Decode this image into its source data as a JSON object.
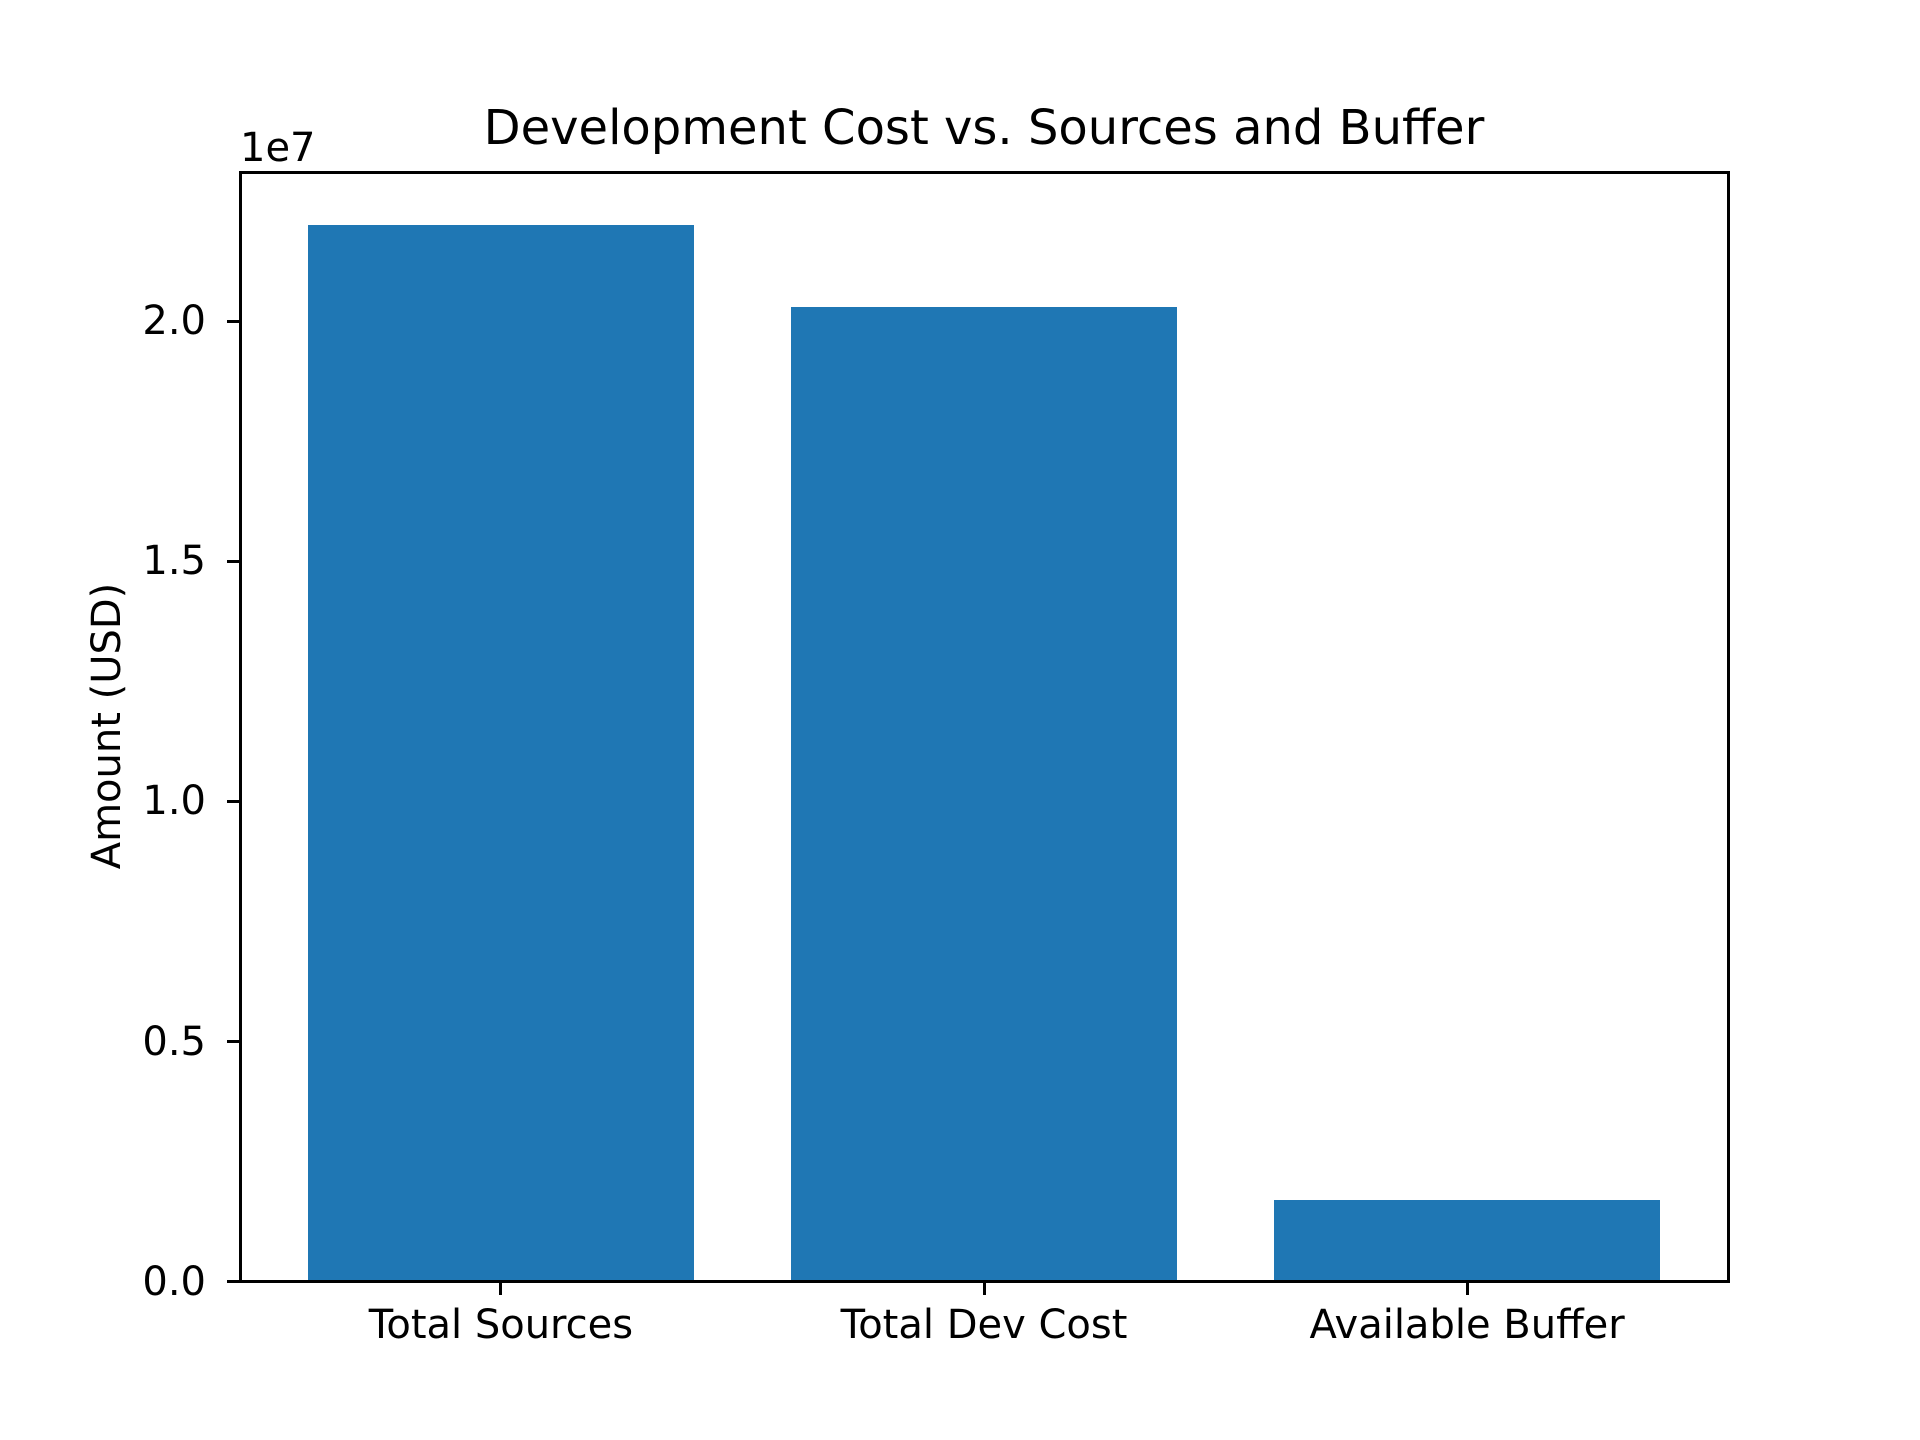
{
  "figure": {
    "background": "#ffffff",
    "text_color": "#000000"
  },
  "chart_data": {
    "type": "bar",
    "title": "Development Cost vs. Sources and Buffer",
    "ylabel": "Amount (USD)",
    "xlabel": "",
    "offset_text": "1e7",
    "categories": [
      "Total Sources",
      "Total Dev Cost",
      "Available Buffer"
    ],
    "values": [
      22000000,
      20300000,
      1700000
    ],
    "bar_color": "#1f77b4",
    "bar_width_fraction": 0.8,
    "xlim": [
      -0.54,
      2.54
    ],
    "ylim": [
      0,
      23100000
    ],
    "yticks": {
      "values": [
        0,
        5000000,
        10000000,
        15000000,
        20000000
      ],
      "labels": [
        "0.0",
        "0.5",
        "1.0",
        "1.5",
        "2.0"
      ]
    },
    "grid": false,
    "legend": null
  }
}
